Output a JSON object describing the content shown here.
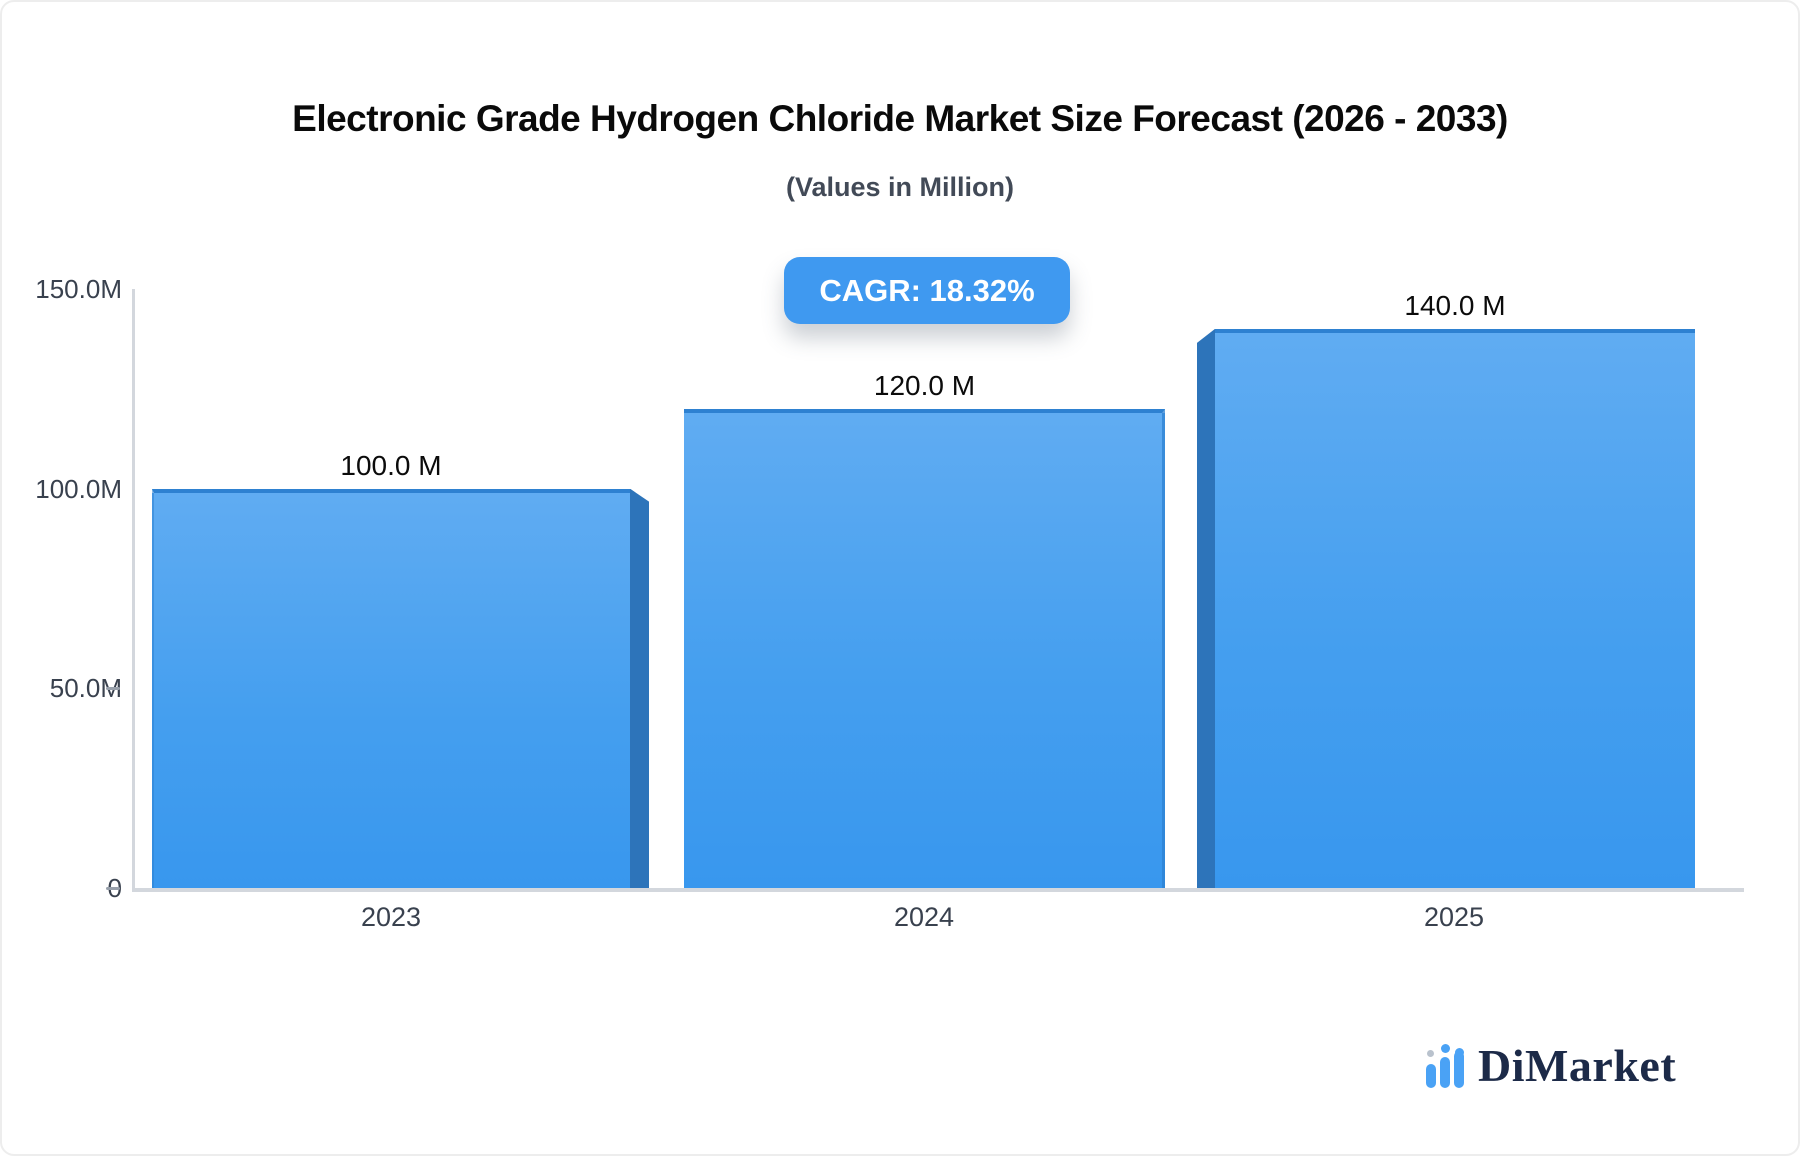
{
  "header": {
    "title": "Electronic Grade Hydrogen Chloride Market Size Forecast (2026 - 2033)",
    "subtitle": "(Values in Million)",
    "cagr_label": "CAGR: 18.32%"
  },
  "chart_data": {
    "type": "bar",
    "title": "Electronic Grade Hydrogen Chloride Market Size Forecast (2026 - 2033)",
    "subtitle": "(Values in Million)",
    "unit": "Million",
    "cagr_percent": 18.32,
    "categories": [
      "2023",
      "2024",
      "2025"
    ],
    "values": [
      100,
      120,
      140
    ],
    "value_labels": [
      "100.0 M",
      "120.0 M",
      "140.0 M"
    ],
    "xlabel": "",
    "ylabel": "",
    "ylim": [
      0,
      150
    ],
    "y_ticks": [
      {
        "label": "150.0M",
        "value": 150,
        "dash": false
      },
      {
        "label": "100.0M",
        "value": 100,
        "dash": false
      },
      {
        "label": "50.0M",
        "value": 50,
        "dash": true
      },
      {
        "label": "0",
        "value": 0,
        "dash": true
      }
    ],
    "grid": false,
    "legend": "none"
  },
  "colors": {
    "bar_fill_top": "#60acf2",
    "bar_fill_bottom": "#3897ee",
    "bar_border": "#2e81d1",
    "bar_side": "#2d74ba",
    "badge_bg": "#3f99f0",
    "axis_line": "#d3d7dd",
    "tick_text": "#39414e"
  },
  "logo": {
    "text": "DiMarket",
    "icon": "mini-bar-chart-icon",
    "icon_bar_color": "#4aa2f5",
    "icon_dot_gray": "#b9c2cd"
  }
}
